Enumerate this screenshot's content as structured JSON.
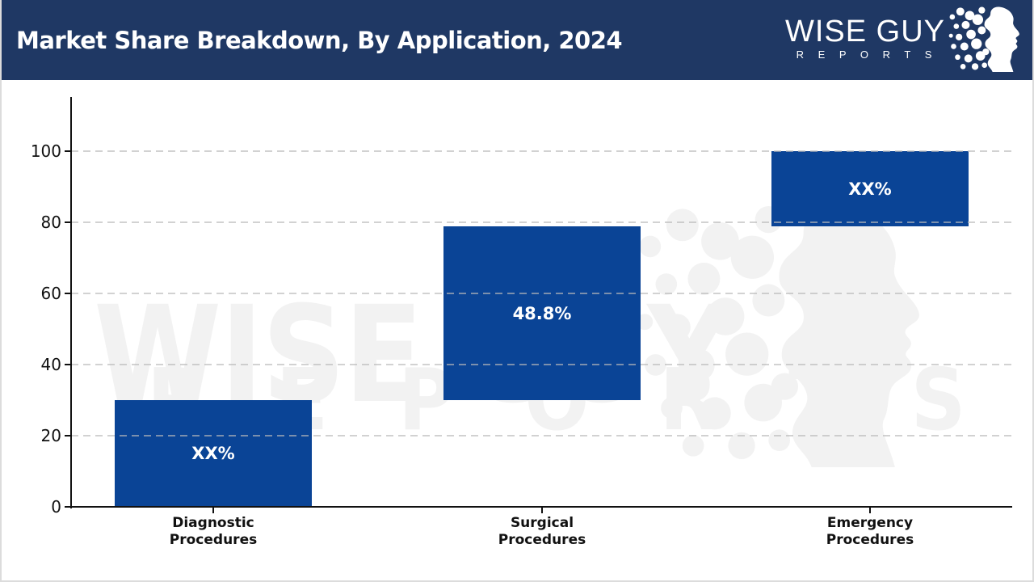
{
  "header": {
    "title": "Market Share Breakdown, By Application, 2024",
    "logo": {
      "line1": "WISE GUY",
      "line2": "R E P O R T S"
    }
  },
  "watermark": {
    "line1": "WISE GUY",
    "line2": "R E P O R T S"
  },
  "chart_data": {
    "type": "bar",
    "subtype": "floating-segment-waterfall",
    "title": "Market Share Breakdown, By Application, 2024",
    "xlabel": "",
    "ylabel": "",
    "ylim": [
      0,
      100
    ],
    "yticks": [
      0,
      20,
      40,
      60,
      80,
      100
    ],
    "grid": "horizontal-dashed",
    "legend": "none",
    "categories": [
      "Diagnostic Procedures",
      "Surgical Procedures",
      "Emergency Procedures"
    ],
    "category_lines": [
      [
        "Diagnostic",
        "Procedures"
      ],
      [
        "Surgical",
        "Procedures"
      ],
      [
        "Emergency",
        "Procedures"
      ]
    ],
    "bars": [
      {
        "category": "Diagnostic Procedures",
        "start": 0,
        "end": 30,
        "value_label": "XX%"
      },
      {
        "category": "Surgical Procedures",
        "start": 30,
        "end": 78.8,
        "value_label": "48.8%"
      },
      {
        "category": "Emergency Procedures",
        "start": 78.8,
        "end": 100,
        "value_label": "XX%"
      }
    ],
    "colors": {
      "bar": "#0a4496",
      "bar_label": "#ffffff",
      "axis": "#111111",
      "tick_label": "#111111",
      "header_bg": "#1f3864",
      "watermark": "#f2f2f2",
      "gridline": "#d9d9d9"
    }
  }
}
